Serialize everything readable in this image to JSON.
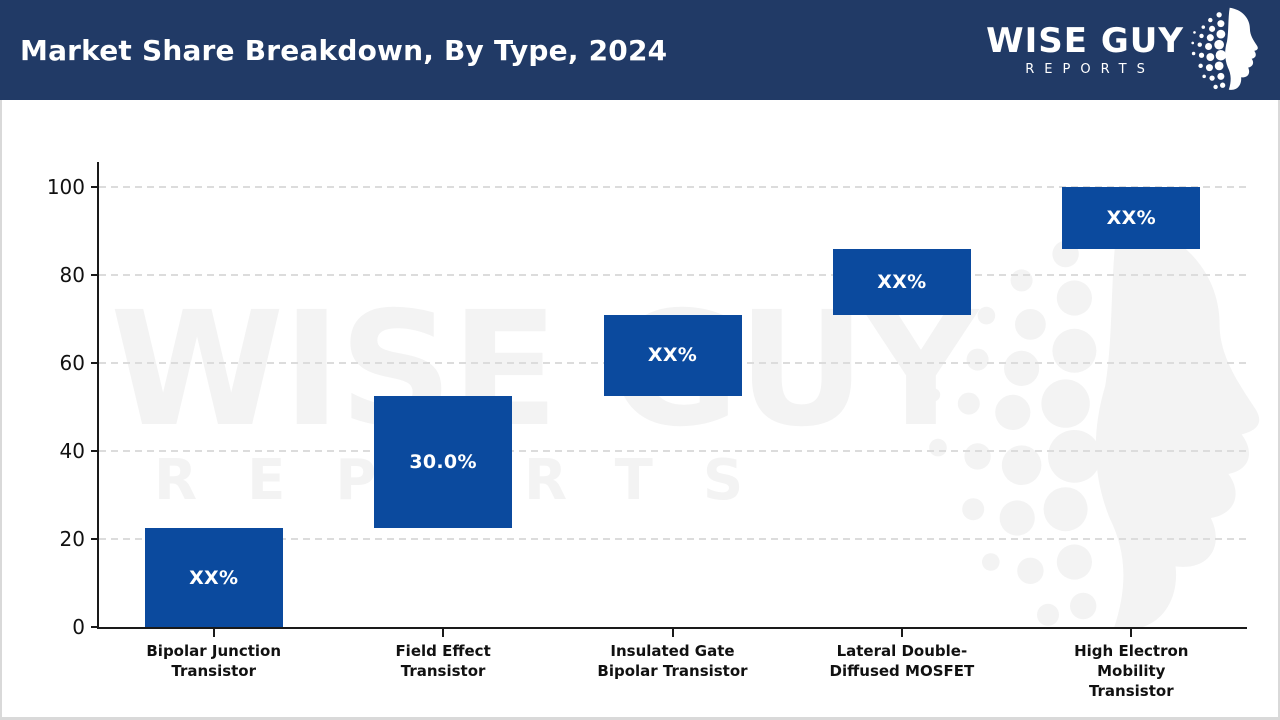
{
  "header": {
    "title": "Market Share Breakdown, By Type, 2024",
    "logo": {
      "line1": "WISE GUY",
      "line2": "REPORTS"
    }
  },
  "watermark": {
    "line1": "WISE GUY",
    "line2": "REPORTS"
  },
  "chart_data": {
    "type": "bar",
    "subtype": "floating-waterfall",
    "title": "Market Share Breakdown, By Type, 2024",
    "xlabel": "",
    "ylabel": "",
    "ylim": [
      0,
      100
    ],
    "yticks": [
      0,
      20,
      40,
      60,
      80,
      100
    ],
    "grid": "horizontal-dashed",
    "legend": "none",
    "bar_color": "#0b4a9e",
    "label_color": "#ffffff",
    "categories": [
      "Bipolar Junction Transistor",
      "Field Effect Transistor",
      "Insulated Gate Bipolar Transistor",
      "Lateral Double-Diffused MOSFET",
      "High Electron Mobility Transistor"
    ],
    "bars": [
      {
        "category": "Bipolar Junction Transistor",
        "category_lines": [
          "Bipolar Junction",
          "Transistor"
        ],
        "start": 0,
        "end": 22.5,
        "label": "XX%"
      },
      {
        "category": "Field Effect Transistor",
        "category_lines": [
          "Field Effect",
          "Transistor"
        ],
        "start": 22.5,
        "end": 52.5,
        "label": "30.0%"
      },
      {
        "category": "Insulated Gate Bipolar Transistor",
        "category_lines": [
          "Insulated Gate",
          "Bipolar Transistor"
        ],
        "start": 52.5,
        "end": 71,
        "label": "XX%"
      },
      {
        "category": "Lateral Double-Diffused MOSFET",
        "category_lines": [
          "Lateral Double-",
          "Diffused MOSFET"
        ],
        "start": 71,
        "end": 86,
        "label": "XX%"
      },
      {
        "category": "High Electron Mobility Transistor",
        "category_lines": [
          "High Electron",
          "Mobility",
          "Transistor"
        ],
        "start": 86,
        "end": 100,
        "label": "XX%"
      }
    ]
  }
}
